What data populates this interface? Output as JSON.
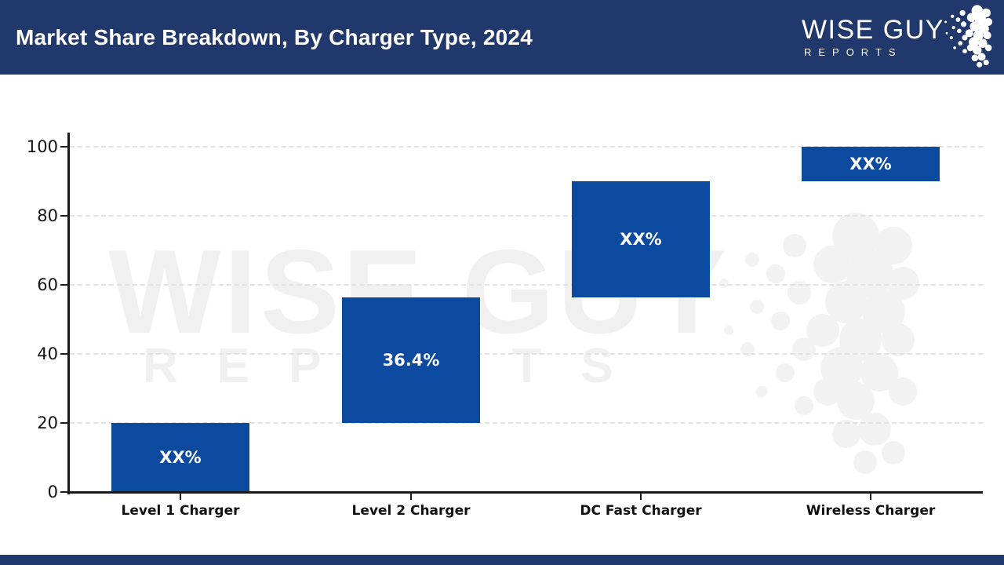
{
  "header": {
    "title": "Market Share Breakdown, By Charger Type, 2024",
    "bg_color": "#20386b",
    "logo": {
      "line1": "WISE GUY",
      "line2": "REPORTS"
    }
  },
  "watermark": {
    "line1": "WISE GUY",
    "line2": "REPORTS"
  },
  "chart_data": {
    "type": "bar",
    "subtype": "floating-waterfall",
    "title": "Market Share Breakdown, By Charger Type, 2024",
    "categories": [
      "Level 1 Charger",
      "Level 2 Charger",
      "DC Fast Charger",
      "Wireless Charger"
    ],
    "segments": [
      {
        "category": "Level 1 Charger",
        "start": 0,
        "end": 20,
        "label": "XX%"
      },
      {
        "category": "Level 2 Charger",
        "start": 20,
        "end": 56.4,
        "label": "36.4%",
        "value": 36.4
      },
      {
        "category": "DC Fast Charger",
        "start": 56.4,
        "end": 90,
        "label": "XX%"
      },
      {
        "category": "Wireless Charger",
        "start": 90,
        "end": 100,
        "label": "XX%"
      }
    ],
    "yticks": [
      0,
      20,
      40,
      60,
      80,
      100
    ],
    "ylim": [
      0,
      104
    ],
    "xlabel": "",
    "ylabel": "",
    "grid": "horizontal-dashed",
    "legend": "none",
    "bar_color": "#0b4a9e",
    "value_label_color": "#ffffff",
    "axis_color": "#1a1a1a",
    "grid_color": "#e2e2e2",
    "watermark_color": "#f0f0f0"
  }
}
